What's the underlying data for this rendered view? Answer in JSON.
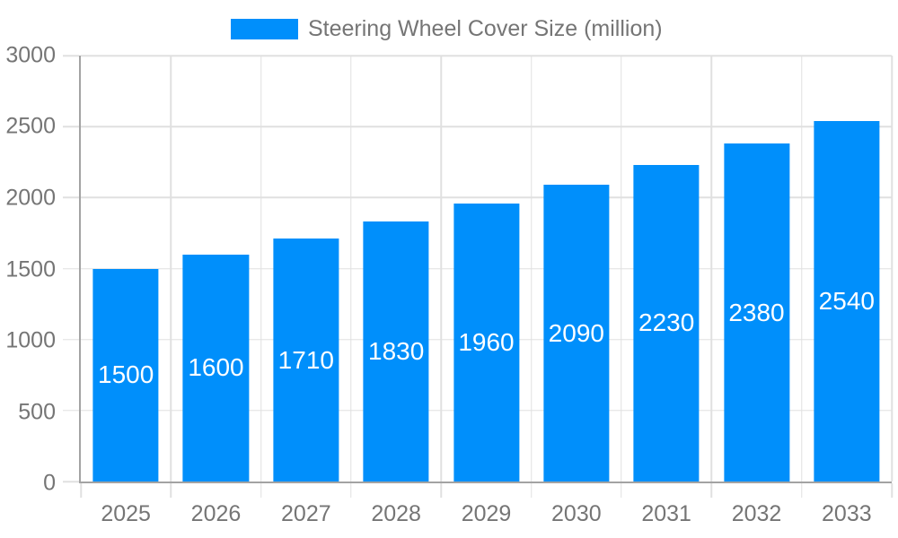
{
  "legend": {
    "label": "Steering Wheel Cover Size (million)"
  },
  "chart_data": {
    "type": "bar",
    "title": "Steering Wheel Cover Size (million)",
    "categories": [
      "2025",
      "2026",
      "2027",
      "2028",
      "2029",
      "2030",
      "2031",
      "2032",
      "2033"
    ],
    "values": [
      1500,
      1600,
      1710,
      1830,
      1960,
      2090,
      2230,
      2380,
      2540
    ],
    "value_labels": [
      "1500",
      "1600",
      "1710",
      "1830",
      "1960",
      "2090",
      "2230",
      "2380",
      "2540"
    ],
    "xlabel": "",
    "ylabel": "",
    "ylim": [
      0,
      3000
    ],
    "ytick_interval": 500,
    "ytick_labels": [
      "0",
      "500",
      "1000",
      "1500",
      "2000",
      "2500",
      "3000"
    ],
    "grid": true,
    "legend_position": "top-center",
    "bar_labels_inside": true,
    "colors": {
      "bar": "#008FFB",
      "axis_text": "#757575",
      "grid_line": "#e0e0e0",
      "axis_line": "#a3a3a3",
      "value_label": "#ffffff",
      "background": "#ffffff"
    }
  }
}
